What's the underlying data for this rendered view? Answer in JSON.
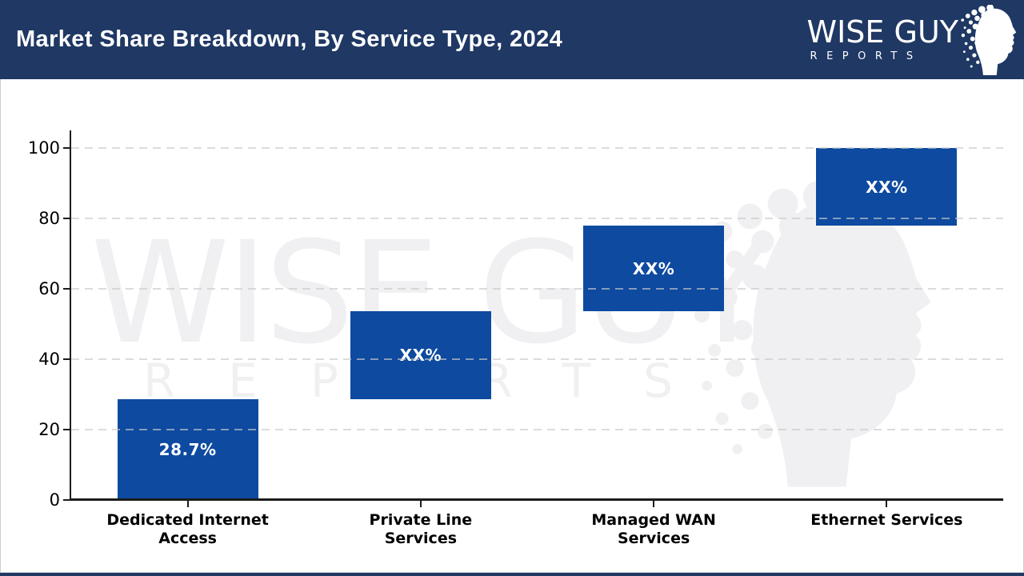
{
  "header": {
    "title": "Market Share Breakdown, By Service Type, 2024",
    "logo": {
      "brand_line1": "WISE GUY",
      "brand_line2": "REPORTS",
      "face_icon": "dotted-head-profile-icon"
    }
  },
  "watermark": {
    "line1": "WISE GUY",
    "line2": "REPORTS"
  },
  "colors": {
    "header_bg": "#1f3864",
    "footer_bg": "#1f3864",
    "bar_fill": "#0d4aa0",
    "bar_label_text": "#ffffff",
    "title_text": "#ffffff",
    "axis": "#1c1c1c",
    "gridline": "#d9d9d9",
    "tick_label_text": "#000000",
    "watermark": "#f0f0f2",
    "page_bg": "#ffffff"
  },
  "chart_data": {
    "type": "bar",
    "subtype": "floating-waterfall",
    "title": "Market Share Breakdown, By Service Type, 2024",
    "categories": [
      "Dedicated Internet\nAccess",
      "Private Line\nServices",
      "Managed WAN\nServices",
      "Ethernet Services"
    ],
    "bars": [
      {
        "category": "Dedicated Internet Access",
        "start": 0,
        "end": 28.7,
        "label": "28.7%"
      },
      {
        "category": "Private Line Services",
        "start": 28.7,
        "end": 53.6,
        "label": "XX%"
      },
      {
        "category": "Managed WAN Services",
        "start": 53.6,
        "end": 77.9,
        "label": "XX%"
      },
      {
        "category": "Ethernet Services",
        "start": 77.9,
        "end": 100,
        "label": "XX%"
      }
    ],
    "xlabel": "",
    "ylabel": "",
    "ylim": [
      0,
      100
    ],
    "yticks": [
      0,
      20,
      40,
      60,
      80,
      100
    ],
    "grid": "horizontal-dashed",
    "legend": "none"
  }
}
